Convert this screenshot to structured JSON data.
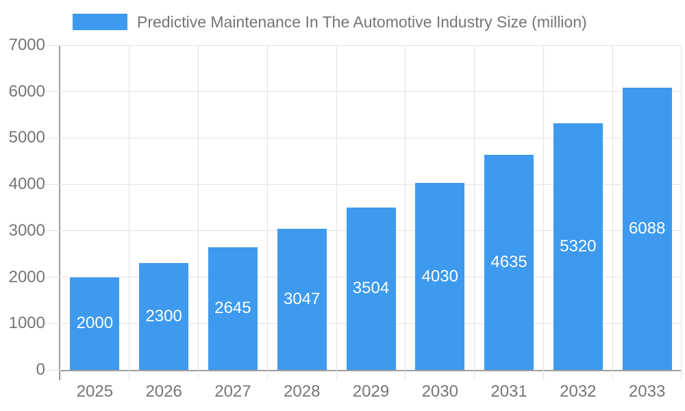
{
  "legend": {
    "label": "Predictive Maintenance In The Automotive Industry Size (million)"
  },
  "chart_data": {
    "type": "bar",
    "title": "Predictive Maintenance In The Automotive Industry Size (million)",
    "categories": [
      "2025",
      "2026",
      "2027",
      "2028",
      "2029",
      "2030",
      "2031",
      "2032",
      "2033"
    ],
    "values": [
      2000,
      2300,
      2645,
      3047,
      3504,
      4030,
      4635,
      5320,
      6088
    ],
    "xlabel": "",
    "ylabel": "",
    "ylim": [
      0,
      7000
    ],
    "yticks": [
      0,
      1000,
      2000,
      3000,
      4000,
      5000,
      6000,
      7000
    ],
    "grid": true,
    "legend_position": "top-left",
    "bar_labels_inside": true
  },
  "colors": {
    "bar": "#3D9AEE",
    "bar_label": "#FFFFFF",
    "grid_line": "#E2E2E2",
    "axis_line": "#9E9E9E",
    "axis_text": "#757575",
    "background": "#FFFFFF"
  }
}
